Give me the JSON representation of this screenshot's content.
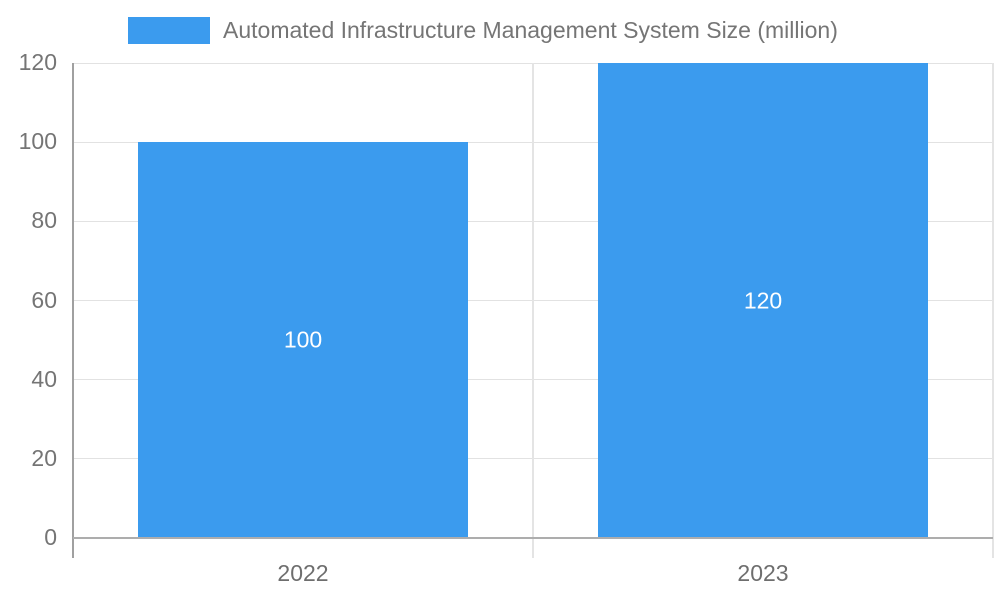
{
  "legend": {
    "label": "Automated Infrastructure Management System Size (million)"
  },
  "chart_data": {
    "type": "bar",
    "title": "",
    "categories": [
      "2022",
      "2023"
    ],
    "series": [
      {
        "name": "Automated Infrastructure Management System Size (million)",
        "values": [
          100,
          120
        ]
      }
    ],
    "values": [
      100,
      120
    ],
    "bar_labels": [
      "100",
      "120"
    ],
    "xlabel": "",
    "ylabel": "",
    "ylim": [
      0,
      120
    ],
    "yticks": [
      0,
      20,
      40,
      60,
      80,
      100,
      120
    ],
    "grid": true,
    "legend_position": "top",
    "colors": {
      "bar": "#3B9BEE",
      "bar_label": "#FFFFFF",
      "axis": "#A6A6A6",
      "gridline": "#E2E2E2",
      "tick_text": "#757575"
    }
  }
}
